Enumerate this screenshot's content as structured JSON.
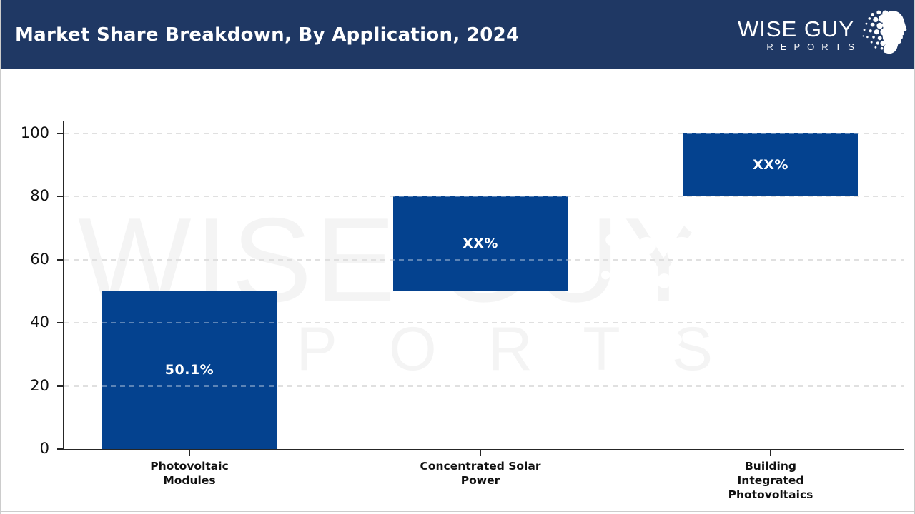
{
  "header": {
    "title": "Market Share Breakdown, By Application, 2024",
    "background_color": "#1f3864",
    "logo": {
      "primary": "WISE GUY",
      "secondary": "REPORTS",
      "head_icon": "dotted-head-profile"
    }
  },
  "watermark": {
    "line1": "WISE GUY",
    "line2": "REPORTS",
    "color": "#f4f4f4"
  },
  "chart_data": {
    "type": "bar",
    "subtype": "waterfall-stacked-breakdown",
    "title": "Market Share Breakdown, By Application, 2024",
    "categories": [
      "Photovoltaic\nModules",
      "Concentrated Solar\nPower",
      "Building\nIntegrated\nPhotovoltaics"
    ],
    "segments": [
      {
        "category": "Photovoltaic Modules",
        "start": 0,
        "end": 50.1,
        "label": "50.1%"
      },
      {
        "category": "Concentrated Solar Power",
        "start": 50.1,
        "end": 80,
        "label": "XX%"
      },
      {
        "category": "Building Integrated Photovoltaics",
        "start": 80,
        "end": 100,
        "label": "XX%"
      }
    ],
    "bar_color": "#04428f",
    "value_label_color": "#ffffff",
    "xlabel": "",
    "ylabel": "",
    "ylim": [
      0,
      100
    ],
    "yticks": [
      0,
      20,
      40,
      60,
      80,
      100
    ],
    "grid": "horizontal-dashed",
    "legend": "none"
  }
}
